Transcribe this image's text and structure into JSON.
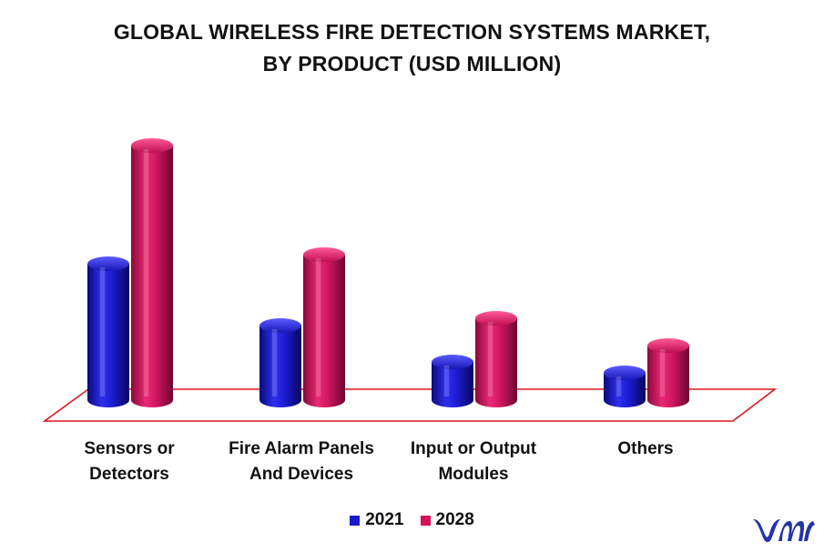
{
  "chart_data": {
    "type": "bar",
    "title": [
      "GLOBAL WIRELESS FIRE DETECTION SYSTEMS MARKET,",
      "BY PRODUCT (USD MILLION)"
    ],
    "categories": [
      "Sensors or\nDetectors",
      "Fire Alarm Panels\nAnd Devices",
      "Input or Output\nModules",
      "Others"
    ],
    "series": [
      {
        "name": "2021",
        "values": [
          150,
          82,
          42,
          30
        ],
        "color": "#1a1acc"
      },
      {
        "name": "2028",
        "values": [
          280,
          160,
          90,
          60
        ],
        "color": "#d4145a"
      }
    ],
    "xlabel": "",
    "ylabel": "",
    "ylim": [
      0,
      300
    ],
    "grid": false,
    "legend": "bottom-center"
  },
  "logo": {
    "icon": "vmr-logo-icon",
    "color": "#2233aa"
  }
}
